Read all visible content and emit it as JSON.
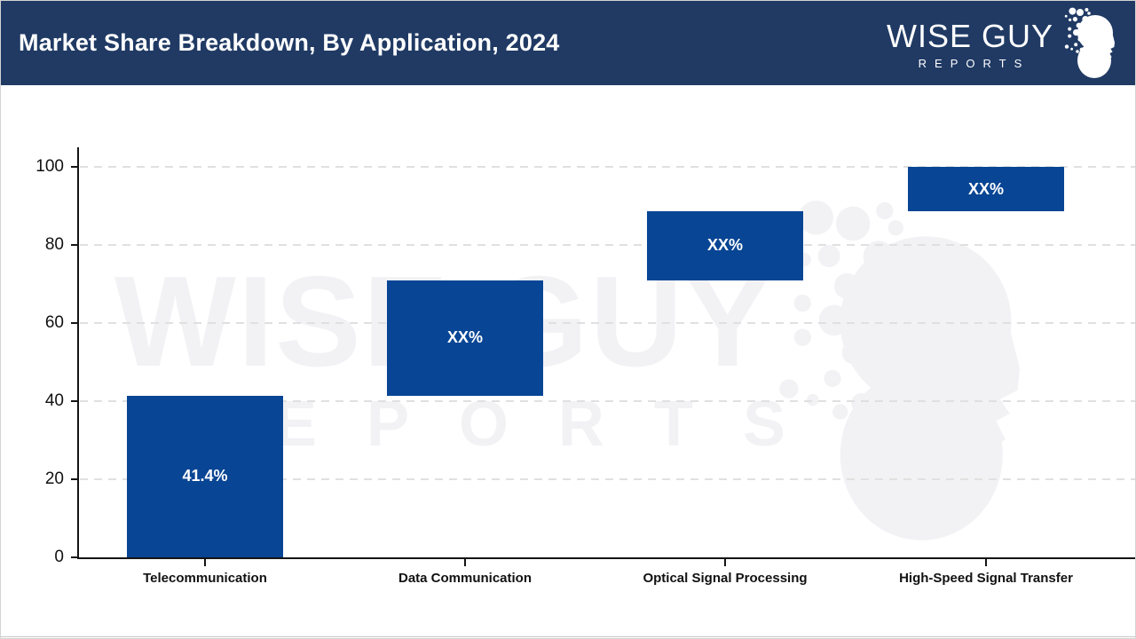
{
  "header": {
    "title": "Market Share Breakdown, By Application, 2024"
  },
  "logo": {
    "line1": "WISE GUY",
    "line2": "REPORTS",
    "head_icon": "dotted-head-profile"
  },
  "watermark": {
    "line1": "WISE GUY",
    "line2": "REPORTS",
    "head_icon": "dotted-head-profile"
  },
  "colors": {
    "header_bg": "#203A64",
    "bar": "#084594",
    "bar_label": "#FFFFFF",
    "grid": "#E0E0E0",
    "axis": "#141414",
    "watermark": "#F2F2F5",
    "page_border": "#D4D4D4"
  },
  "chart_data": {
    "type": "bar",
    "subtype": "waterfall",
    "title": "Market Share Breakdown, By Application, 2024",
    "categories": [
      "Telecommunication",
      "Data Communication",
      "Optical Signal Processing",
      "High-Speed Signal Transfer"
    ],
    "segments": [
      {
        "category": "Telecommunication",
        "start": 0,
        "end": 41.4,
        "label": "41.4%"
      },
      {
        "category": "Data Communication",
        "start": 41.4,
        "end": 71.0,
        "label": "XX%"
      },
      {
        "category": "Optical Signal Processing",
        "start": 71.0,
        "end": 88.6,
        "label": "XX%"
      },
      {
        "category": "High-Speed Signal Transfer",
        "start": 88.6,
        "end": 100,
        "label": "XX%"
      }
    ],
    "yticks": [
      0,
      20,
      40,
      60,
      80,
      100
    ],
    "ytick_labels": [
      "0",
      "20",
      "40",
      "60",
      "80",
      "100"
    ],
    "ylim": [
      0,
      105
    ],
    "xlabel": "",
    "ylabel": "",
    "grid": "dashed-horizontal",
    "legend": "none"
  }
}
